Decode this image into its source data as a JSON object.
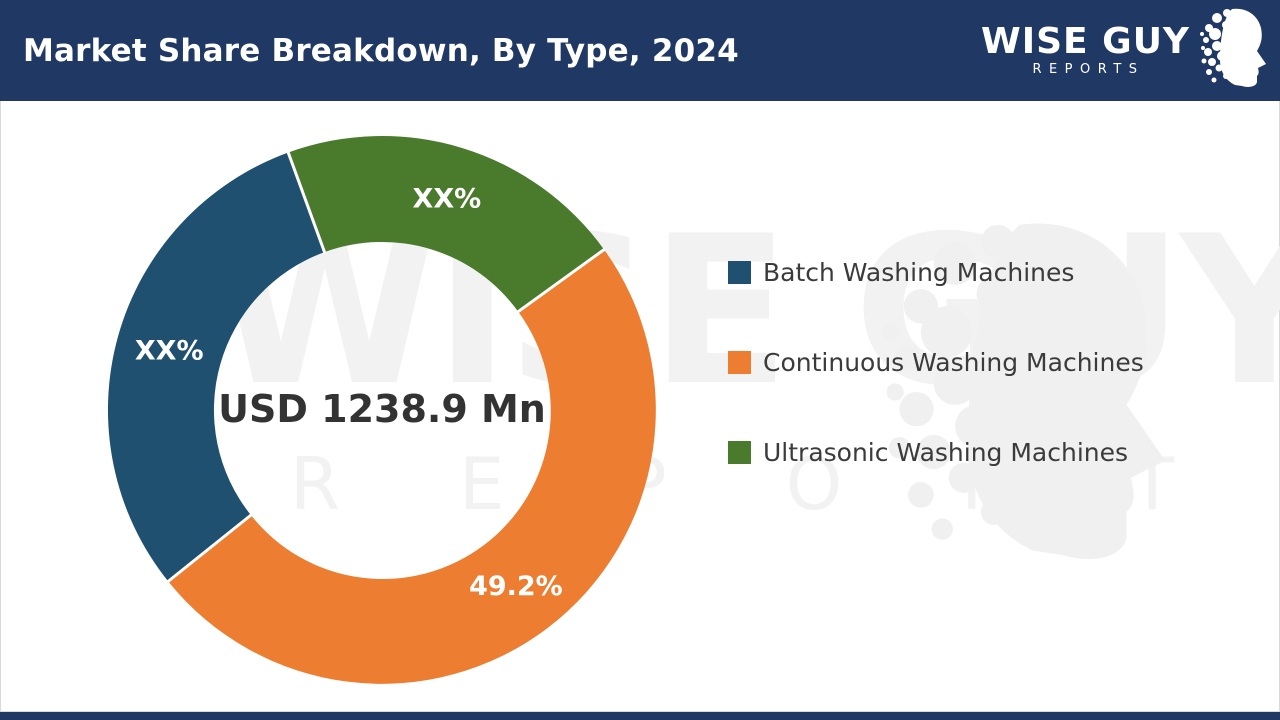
{
  "header": {
    "title": "Market Share Breakdown, By Type, 2024",
    "bg_color": "#203864",
    "logo": {
      "line1": "WISE GUY",
      "line2": "REPORTS",
      "face_icon": "face-profile-dots-icon"
    }
  },
  "chart_data": {
    "type": "pie",
    "variant": "donut",
    "title": "Market Share Breakdown, By Type, 2024",
    "center_label": "USD 1238.9 Mn",
    "start_angle_deg": -20,
    "inner_radius_ratio": 0.613,
    "legend_position": "right",
    "slices": [
      {
        "label": "Ultrasonic Washing Machines",
        "display_label": "XX%",
        "percent": 20.6,
        "color": "#4a7a2b"
      },
      {
        "label": "Continuous Washing Machines",
        "display_label": "49.2%",
        "percent": 49.2,
        "color": "#ec7d31"
      },
      {
        "label": "Batch Washing Machines",
        "display_label": "XX%",
        "percent": 30.2,
        "color": "#1f5070"
      }
    ]
  },
  "legend": {
    "items": [
      {
        "label": "Batch Washing Machines",
        "color": "#1f5070"
      },
      {
        "label": "Continuous Washing Machines",
        "color": "#ec7d31"
      },
      {
        "label": "Ultrasonic Washing Machines",
        "color": "#4a7a2b"
      }
    ]
  },
  "watermark": {
    "line1": "WISE GUY",
    "line2": "R E P O R T S",
    "face_icon": "face-profile-dots-icon"
  }
}
